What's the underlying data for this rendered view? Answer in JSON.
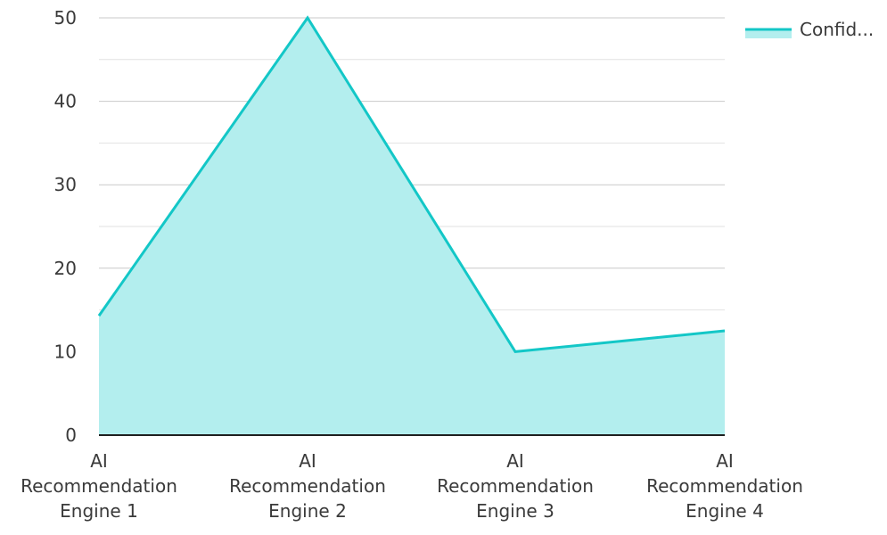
{
  "chart_data": {
    "type": "area",
    "categories": [
      [
        "AI",
        "Recommendation",
        "Engine 1"
      ],
      [
        "AI",
        "Recommendation",
        "Engine 2"
      ],
      [
        "AI",
        "Recommendation",
        "Engine 3"
      ],
      [
        "AI",
        "Recommendation",
        "Engine 4"
      ]
    ],
    "series": [
      {
        "name": "Confid...",
        "values": [
          14.3,
          50,
          10,
          12.5
        ],
        "color": "#13c7c7",
        "fill_color": "#b3eeee"
      }
    ],
    "y_ticks": [
      "0",
      "10",
      "20",
      "30",
      "40",
      "50"
    ],
    "ylim": [
      0,
      50
    ],
    "xlabel": "",
    "ylabel": "",
    "title": "",
    "grid": true,
    "legend_position": "top-right"
  }
}
